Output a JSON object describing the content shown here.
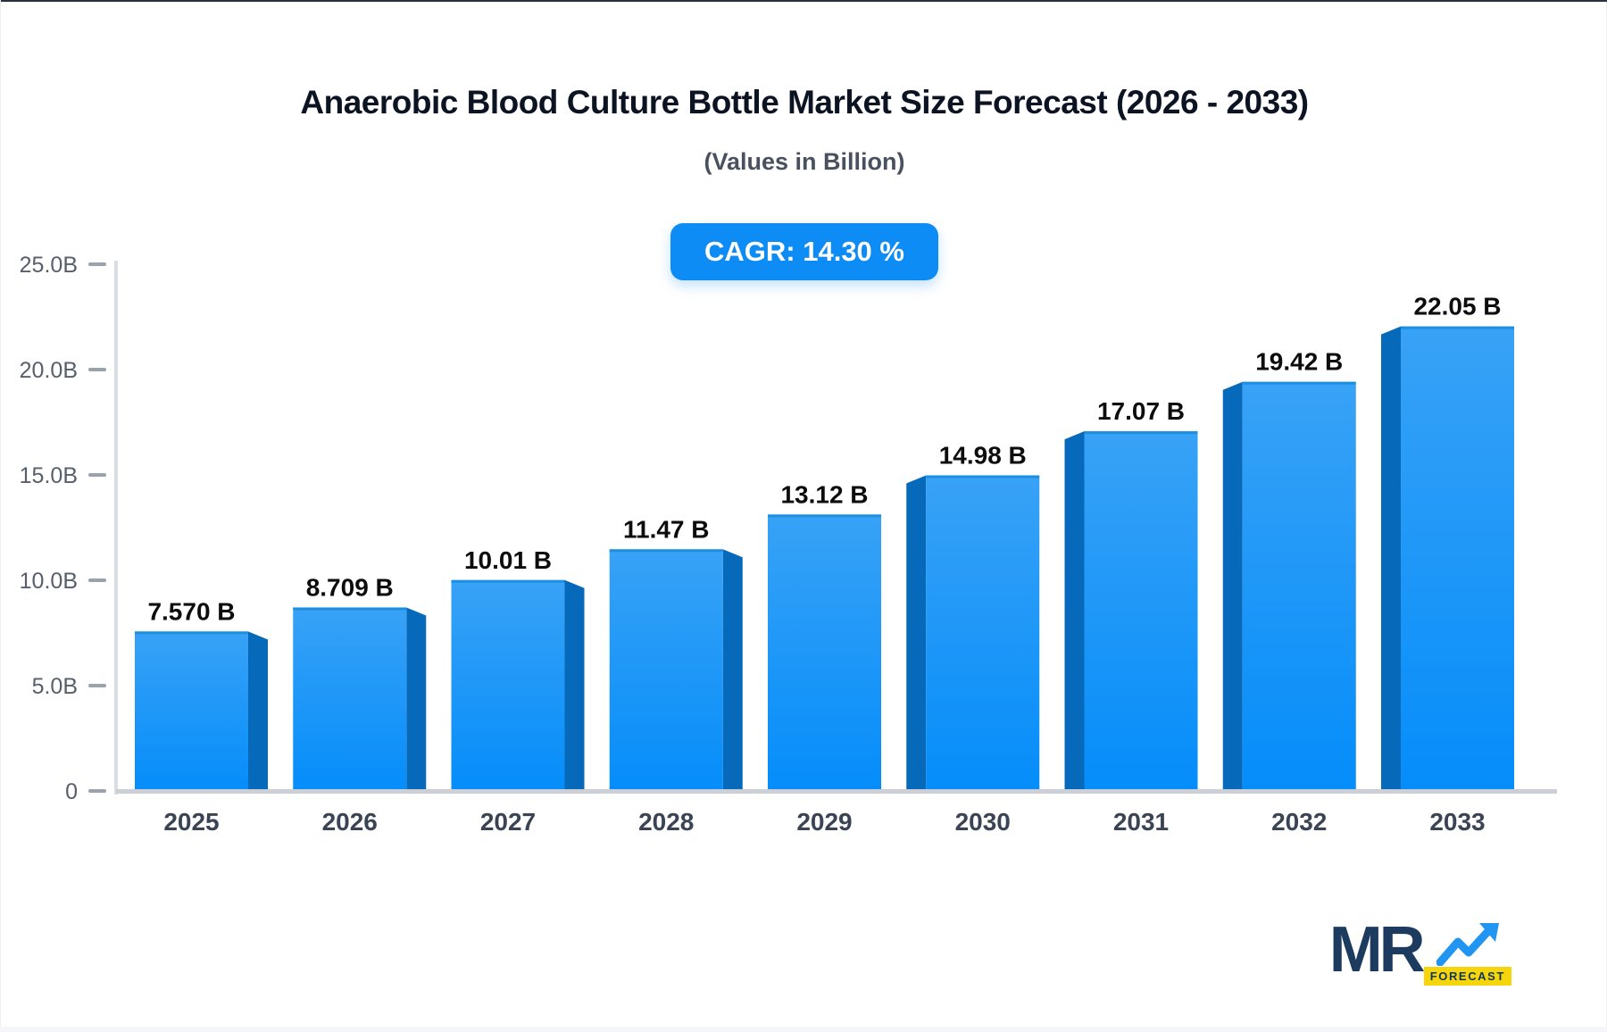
{
  "header": {
    "title": "Anaerobic Blood Culture Bottle Market Size Forecast (2026 - 2033)",
    "subtitle": "(Values in Billion)",
    "cagr": "CAGR: 14.30 %"
  },
  "logo": {
    "text": "MR",
    "tagline": "FORECAST",
    "icon": "trend-up-arrow-icon"
  },
  "colors": {
    "bar_face_top": "#38a2f6",
    "bar_face_bottom": "#058dfa",
    "bar_side": "#0769ba",
    "bar_top_edge": "#1d8fe0",
    "badge_bg": "#0d8cf5",
    "badge_text": "#ffffff",
    "axis_line": "#d9dce1",
    "tick_dash": "#9aa2ac",
    "tick_text": "#565f6c",
    "year_text": "#3a4454",
    "value_text": "#0d0d0d",
    "baseline": "#ccd0d6",
    "logo_navy": "#1d3b5e",
    "logo_blue": "#2095f2",
    "logo_yellow": "#f6d60a"
  },
  "chart_data": {
    "type": "bar",
    "title": "Anaerobic Blood Culture Bottle Market Size Forecast (2026 - 2033)",
    "subtitle": "(Values in Billion)",
    "xlabel": "",
    "ylabel": "",
    "categories": [
      "2025",
      "2026",
      "2027",
      "2028",
      "2029",
      "2030",
      "2031",
      "2032",
      "2033"
    ],
    "values": [
      7.57,
      8.709,
      10.01,
      11.47,
      13.12,
      14.98,
      17.07,
      19.42,
      22.05
    ],
    "value_labels": [
      "7.570 B",
      "8.709 B",
      "10.01 B",
      "11.47 B",
      "13.12 B",
      "14.98 B",
      "17.07 B",
      "19.42 B",
      "22.05 B"
    ],
    "ylim": [
      0,
      25
    ],
    "yticks": {
      "values": [
        0,
        5,
        10,
        15,
        20,
        25
      ],
      "labels": [
        "0",
        "5.0B",
        "10.0B",
        "15.0B",
        "20.0B",
        "25.0B"
      ]
    },
    "grid": false,
    "legend": "none",
    "style": "3d-perspective-bars",
    "cagr_percent": 14.3
  }
}
